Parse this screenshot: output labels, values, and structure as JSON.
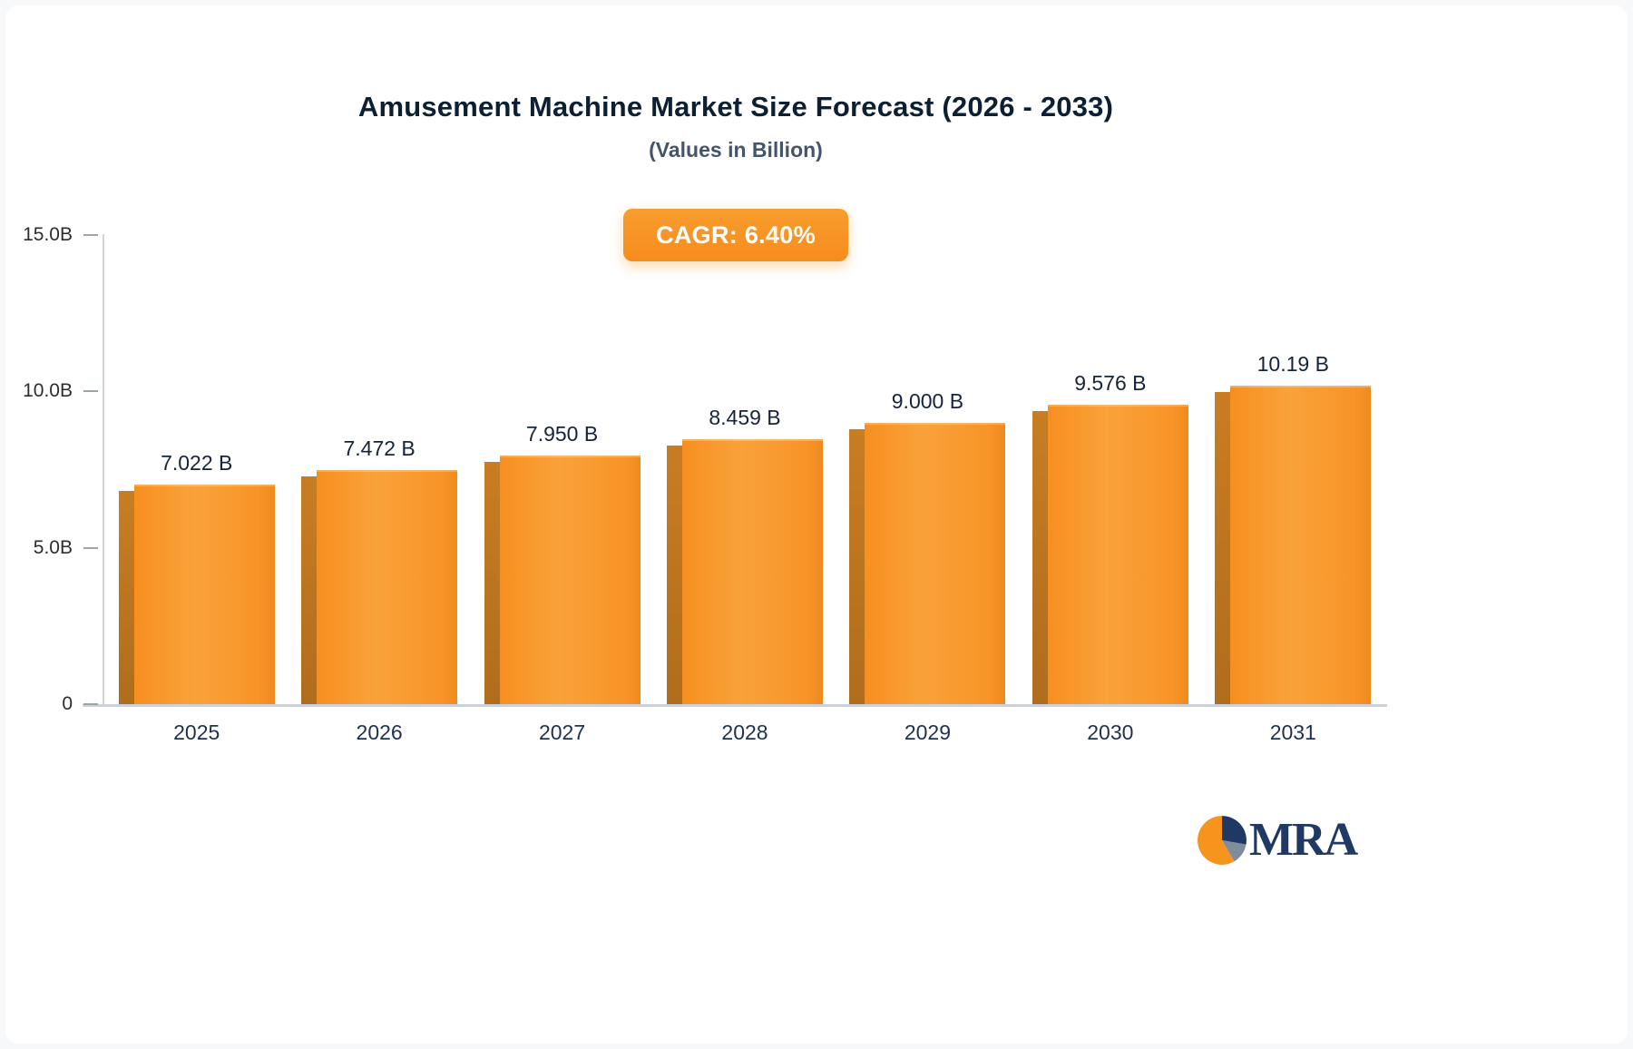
{
  "header": {
    "title": "Amusement Machine Market Size Forecast (2026 - 2033)",
    "subtitle": "(Values in Billion)"
  },
  "badge": {
    "label": "CAGR: 6.40%",
    "background": "#f7941e",
    "text_color": "#ffffff"
  },
  "chart_data": {
    "type": "bar",
    "title": "Amusement Machine Market Size Forecast (2026 - 2033)",
    "subtitle": "(Values in Billion)",
    "annotation": "CAGR: 6.40%",
    "categories": [
      "2025",
      "2026",
      "2027",
      "2028",
      "2029",
      "2030",
      "2031"
    ],
    "values": [
      7.022,
      7.472,
      7.95,
      8.459,
      9.0,
      9.576,
      10.19
    ],
    "value_labels": [
      "7.022 B",
      "7.472 B",
      "7.950 B",
      "8.459 B",
      "9.000 B",
      "9.576 B",
      "10.19 B"
    ],
    "xlabel": "",
    "ylabel": "",
    "ylim": [
      0,
      15
    ],
    "yticks": [
      {
        "value": 0,
        "label": "0"
      },
      {
        "value": 5,
        "label": "5.0B"
      },
      {
        "value": 10,
        "label": "10.0B"
      },
      {
        "value": 15,
        "label": "15.0B"
      }
    ],
    "grid": false,
    "legend": "none",
    "bar_color": "#f89428",
    "bar_side_color": "#bf771f"
  },
  "logo": {
    "text": "MRA",
    "icon": "pie-icon",
    "text_color": "#1f3864",
    "icon_colors": [
      "#f7941e",
      "#1f3864",
      "#7f8c9b"
    ]
  }
}
